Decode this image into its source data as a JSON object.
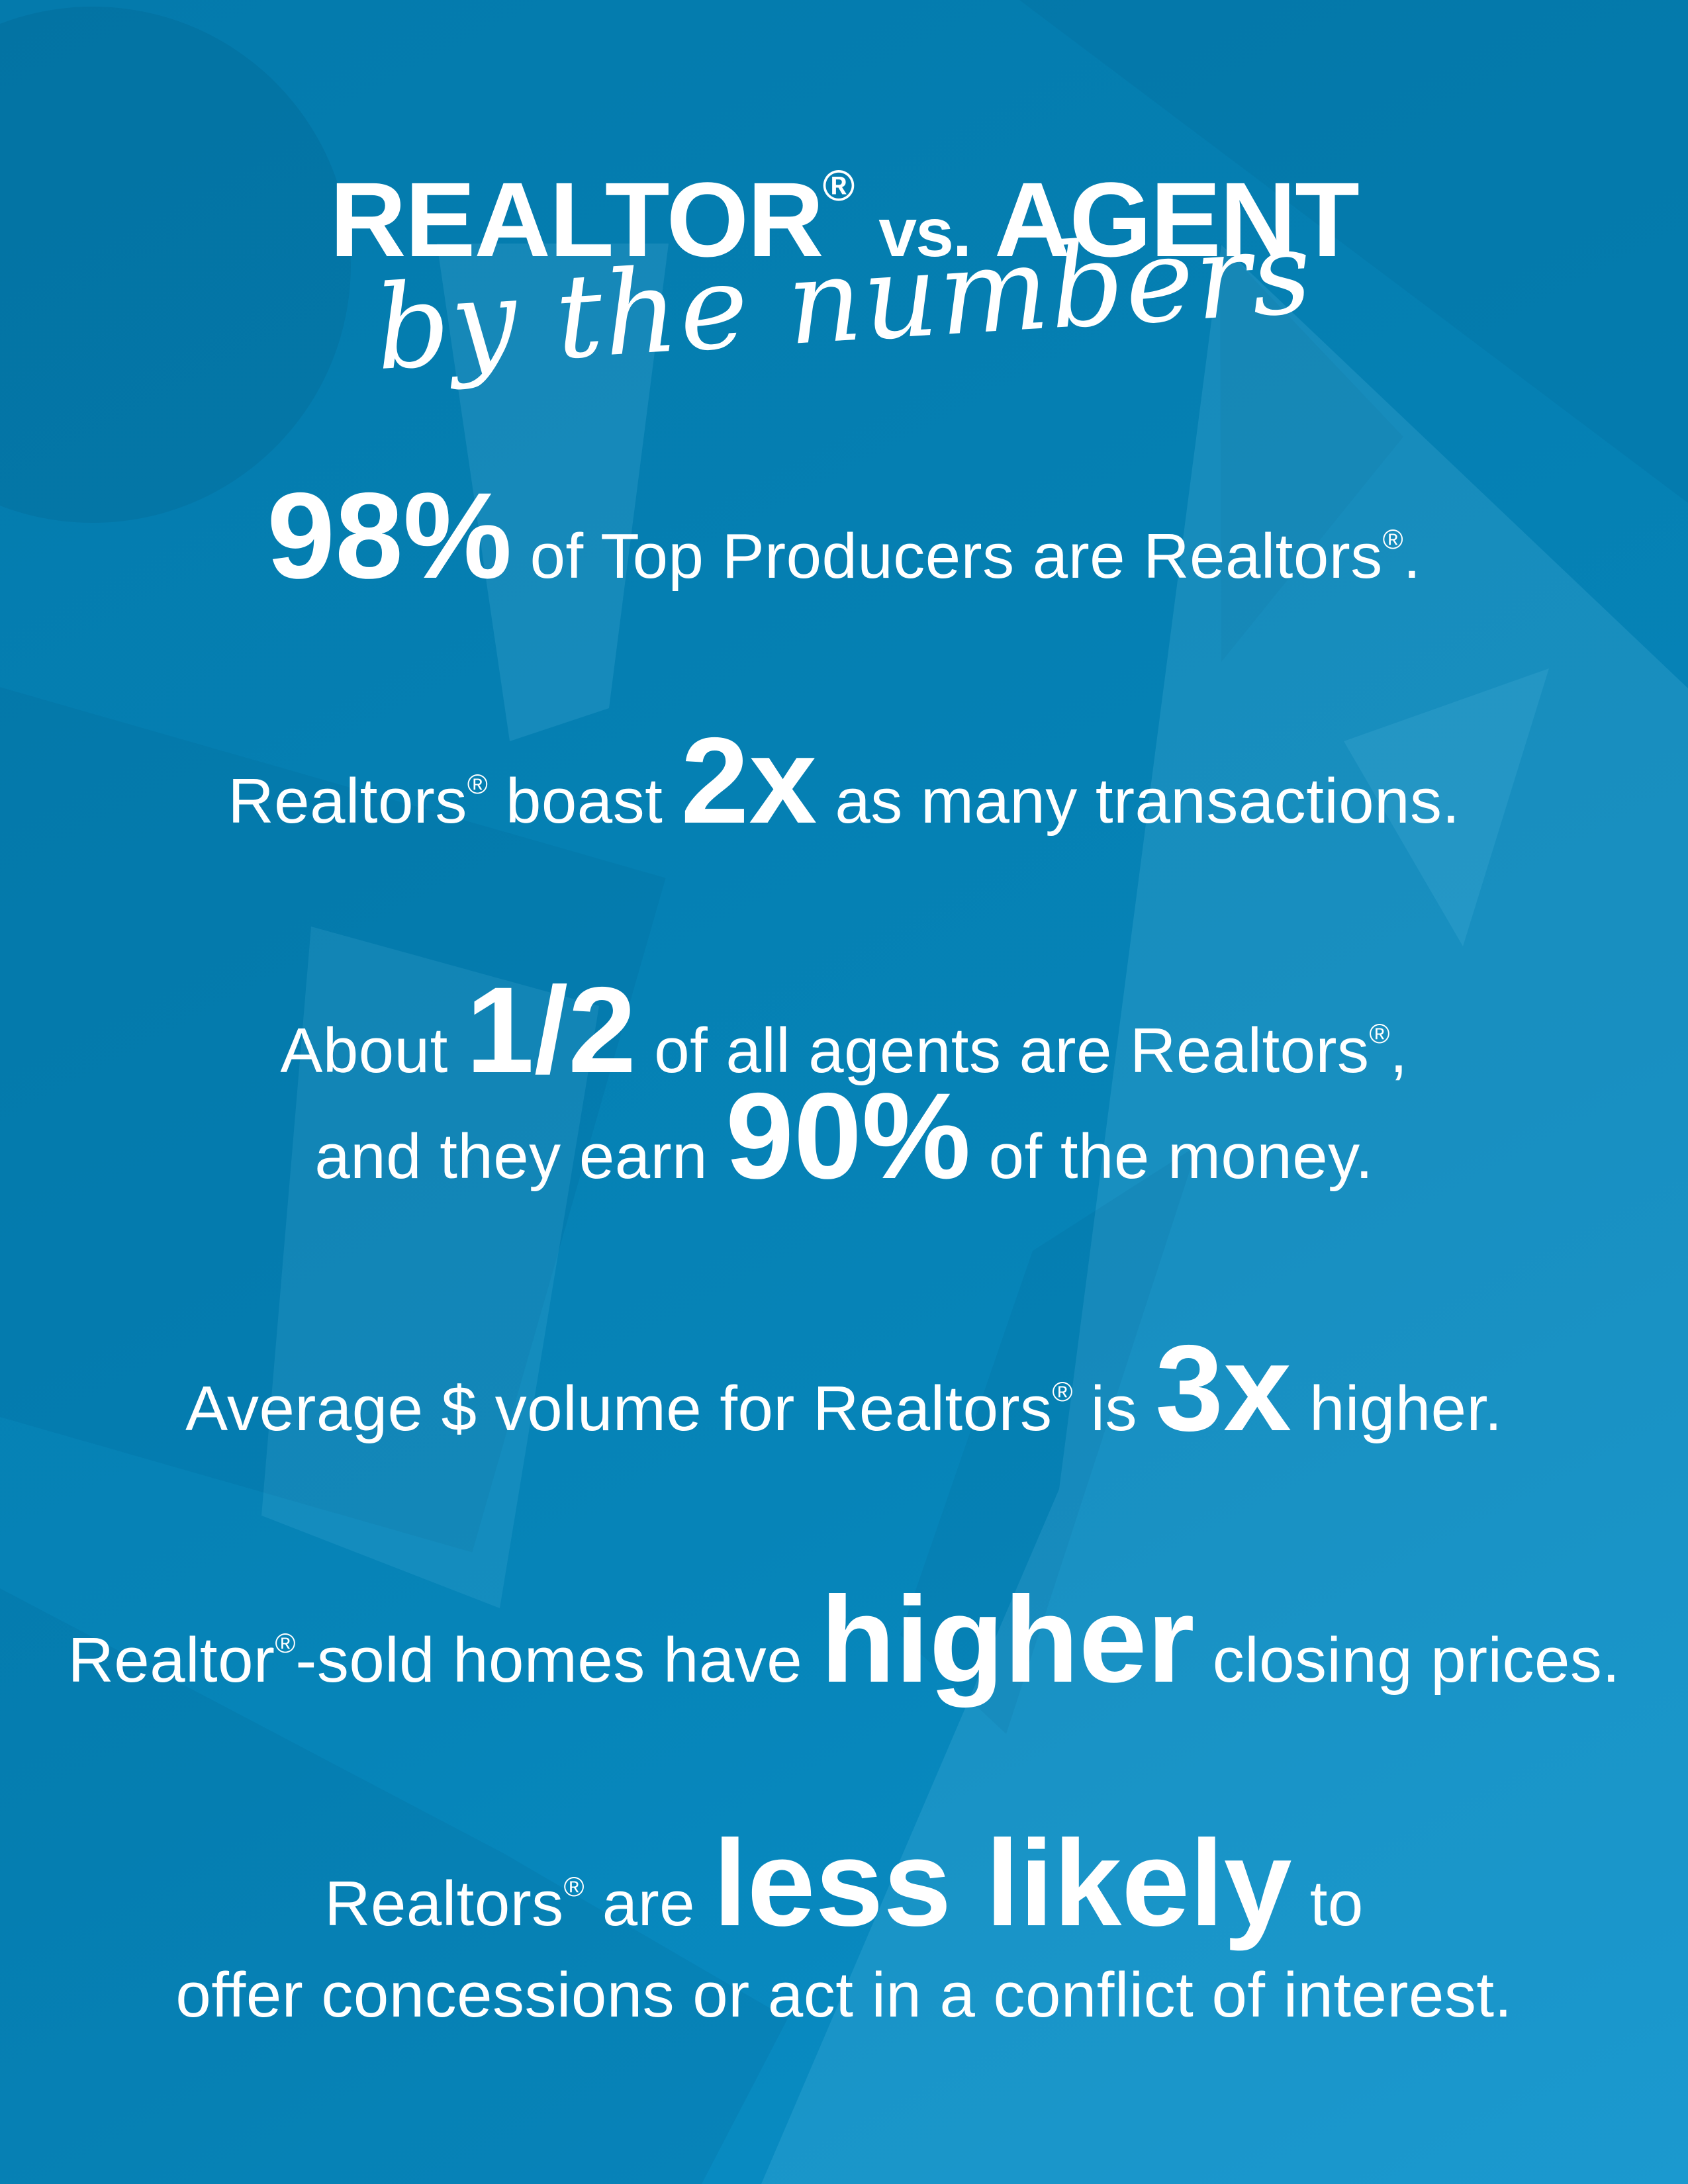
{
  "title": {
    "left": "REALTOR",
    "reg": "®",
    "vs": "vs.",
    "right": "AGENT",
    "subtitle": "by the numbers"
  },
  "stats": [
    {
      "id": "stat-98-percent",
      "lines": [
        {
          "segments": [
            {
              "style": "big",
              "text": "98%"
            },
            {
              "style": "light",
              "text": " of Top Producers are Realtors"
            },
            {
              "style": "reg",
              "text": "®"
            },
            {
              "style": "light",
              "text": "."
            }
          ]
        }
      ]
    },
    {
      "id": "stat-2x-transactions",
      "lines": [
        {
          "segments": [
            {
              "style": "light",
              "text": "Realtors"
            },
            {
              "style": "reg",
              "text": "®"
            },
            {
              "style": "light",
              "text": " boast "
            },
            {
              "style": "big",
              "text": "2x"
            },
            {
              "style": "light",
              "text": " as many transactions."
            }
          ]
        }
      ]
    },
    {
      "id": "stat-half-and-90-percent",
      "lines": [
        {
          "segments": [
            {
              "style": "light",
              "text": "About "
            },
            {
              "style": "big",
              "text": "1/2"
            },
            {
              "style": "light",
              "text": " of all agents are Realtors"
            },
            {
              "style": "reg",
              "text": "®"
            },
            {
              "style": "light",
              "text": ","
            }
          ]
        },
        {
          "segments": [
            {
              "style": "light",
              "text": "and they earn "
            },
            {
              "style": "big",
              "text": "90%"
            },
            {
              "style": "light",
              "text": " of the money."
            }
          ]
        }
      ]
    },
    {
      "id": "stat-3x-volume",
      "lines": [
        {
          "segments": [
            {
              "style": "light",
              "text": "Average $ volume for Realtors"
            },
            {
              "style": "reg",
              "text": "®"
            },
            {
              "style": "light",
              "text": " is "
            },
            {
              "style": "big",
              "text": "3x"
            },
            {
              "style": "light",
              "text": " higher."
            }
          ]
        }
      ]
    },
    {
      "id": "stat-higher-closing-prices",
      "lines": [
        {
          "segments": [
            {
              "style": "light",
              "text": "Realtor"
            },
            {
              "style": "reg",
              "text": "®"
            },
            {
              "style": "light",
              "text": "-sold homes have "
            },
            {
              "style": "big",
              "text": "higher"
            },
            {
              "style": "light",
              "text": " closing prices."
            }
          ]
        }
      ]
    },
    {
      "id": "stat-less-likely-concessions",
      "lines": [
        {
          "segments": [
            {
              "style": "light",
              "text": "Realtors"
            },
            {
              "style": "reg",
              "text": "®"
            },
            {
              "style": "light",
              "text": " are "
            },
            {
              "style": "big",
              "text": "less likely"
            },
            {
              "style": "light",
              "text": " to"
            }
          ]
        },
        {
          "segments": [
            {
              "style": "light",
              "text": "offer concessions or act in a conflict of interest."
            }
          ]
        }
      ]
    }
  ],
  "colors": {
    "background_base": "#0580b3",
    "background_dark_facet": "#0779aa",
    "background_light_facet": "#0991cb",
    "text": "#ffffff"
  }
}
